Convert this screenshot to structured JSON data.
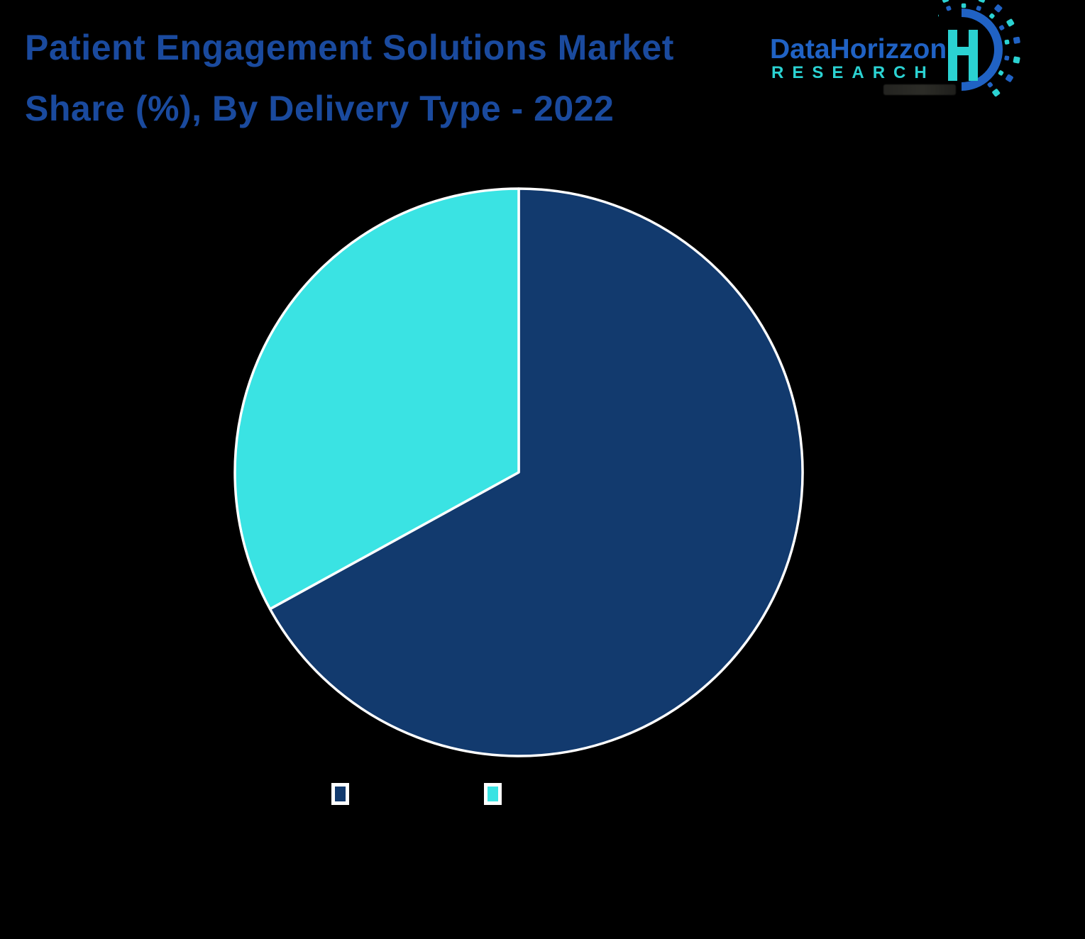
{
  "header": {
    "title_line1": "Patient Engagement Solutions Market",
    "title_line2": "Share (%), By Delivery Type - 2022"
  },
  "logo": {
    "wordmark": "DataHorizzon",
    "subtext": "RESEARCH"
  },
  "theme": {
    "background": "#000000",
    "title_color": "#1a4a9e",
    "wordmark_color": "#2062c4",
    "research_color": "#2bd2d2",
    "logo_blue": "#2062c4",
    "logo_cyan": "#2bd2d2"
  },
  "chart_data": {
    "type": "pie",
    "title": "Patient Engagement Solutions Market Share (%), By Delivery Type - 2022",
    "categories": [
      "",
      ""
    ],
    "values": [
      67,
      33
    ],
    "colors": [
      "#123a6e",
      "#3ae3e3"
    ],
    "start_angle": "12-oclock",
    "direction": "clockwise",
    "slice_border_color": "#ffffff",
    "legend_position": "bottom",
    "legend_labels_visible": false,
    "data_labels_visible": false
  }
}
